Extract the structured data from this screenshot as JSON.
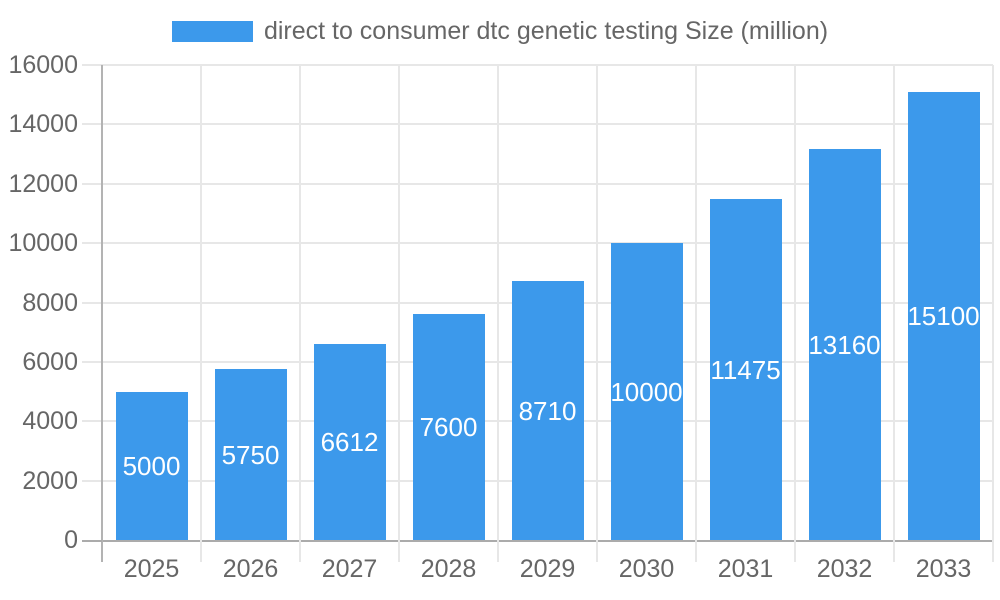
{
  "chart_data": {
    "type": "bar",
    "legend_label": "direct to consumer dtc genetic testing Size (million)",
    "legend_position": "top",
    "categories": [
      "2025",
      "2026",
      "2027",
      "2028",
      "2029",
      "2030",
      "2031",
      "2032",
      "2033"
    ],
    "series": [
      {
        "name": "direct to consumer dtc genetic testing Size (million)",
        "values": [
          5000,
          5750,
          6612,
          7600,
          8710,
          10000,
          11475,
          13160,
          15100
        ]
      }
    ],
    "bar_value_labels": [
      "5000",
      "5750",
      "6612",
      "7600",
      "8710",
      "10000",
      "11475",
      "13160",
      "15100"
    ],
    "xlabel": "",
    "ylabel": "",
    "ylim": [
      0,
      16000
    ],
    "ytick_step": 2000,
    "ytick_labels": [
      "0",
      "2000",
      "4000",
      "6000",
      "8000",
      "10000",
      "12000",
      "14000",
      "16000"
    ],
    "grid": true,
    "colors": {
      "bar": "#3c99eb",
      "bar_label": "#ffffff",
      "axis_text": "#666666",
      "gridline": "#e7e7e7",
      "axis_line": "#ababab",
      "background": "#ffffff"
    }
  }
}
